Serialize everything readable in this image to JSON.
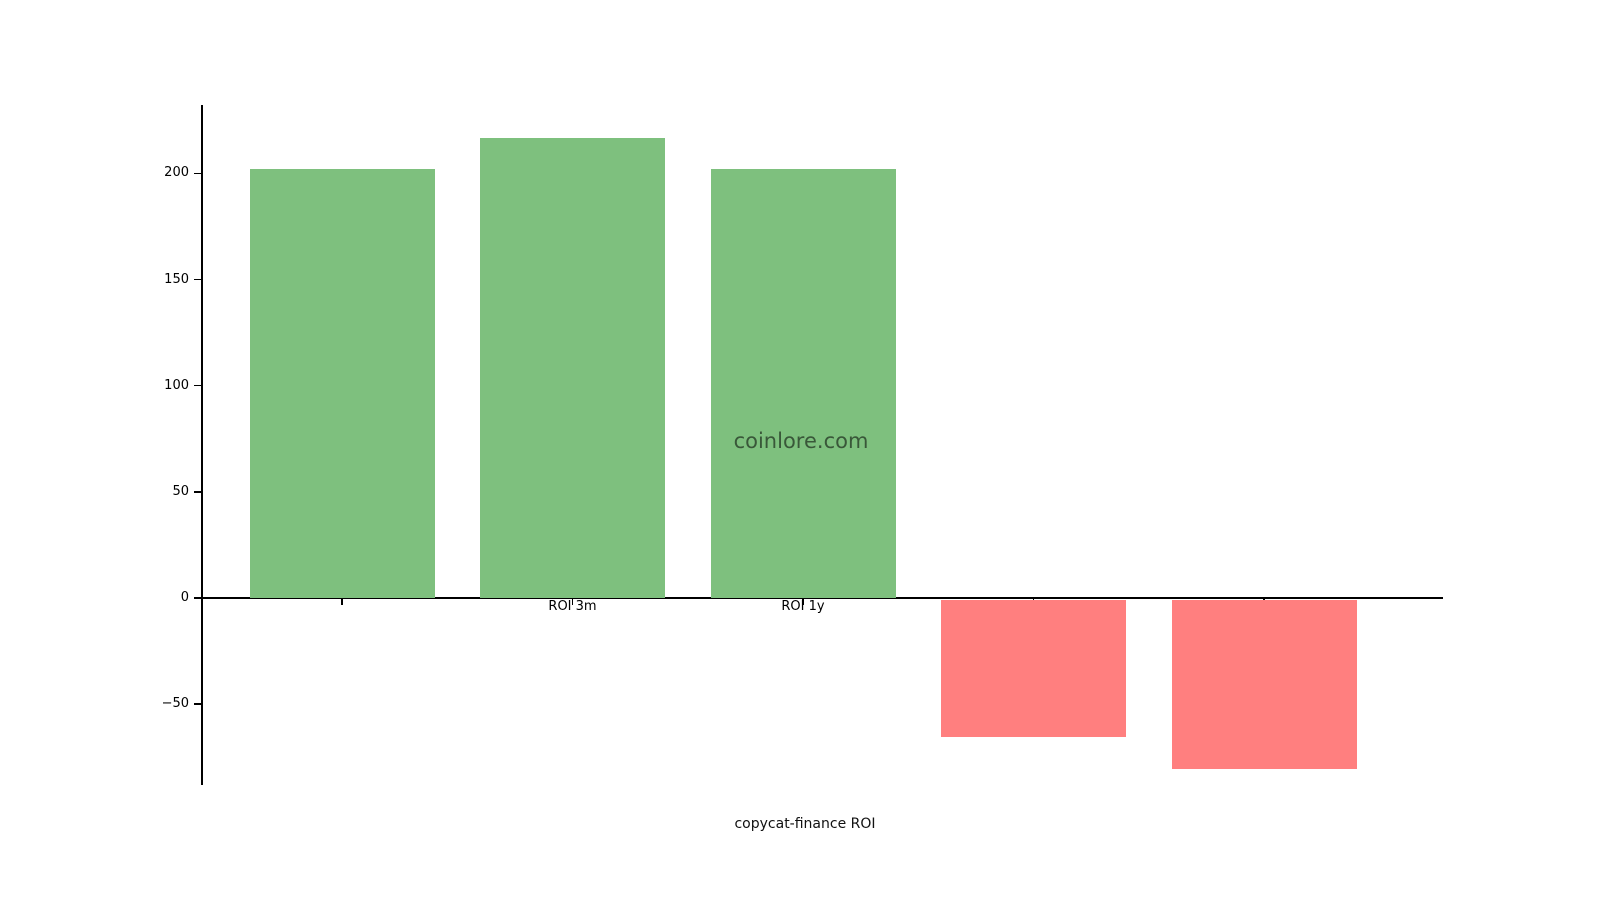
{
  "chart_data": {
    "type": "bar",
    "title": "",
    "xlabel": "copycat-finance ROI",
    "ylabel": "",
    "categories": [
      "",
      "ROI 3m",
      "ROI 1y",
      "",
      ""
    ],
    "values": [
      202,
      216.5,
      202,
      -65,
      -80
    ],
    "positive_color": "#7EC07E",
    "negative_color": "#FF7F7F",
    "y_ticks": [
      200,
      150,
      100,
      50,
      0,
      -50
    ],
    "y_tick_labels": [
      "200",
      "150",
      "100",
      "50",
      "0",
      "−50"
    ],
    "ylim": [
      -88,
      233
    ],
    "grid": false,
    "legend": null,
    "axis_color": "#000000",
    "notes": "x tick labels for first, fourth and fifth bars are not visible; negative bars cover their ticks and labels"
  },
  "watermark": {
    "text": "coinlore.com"
  }
}
